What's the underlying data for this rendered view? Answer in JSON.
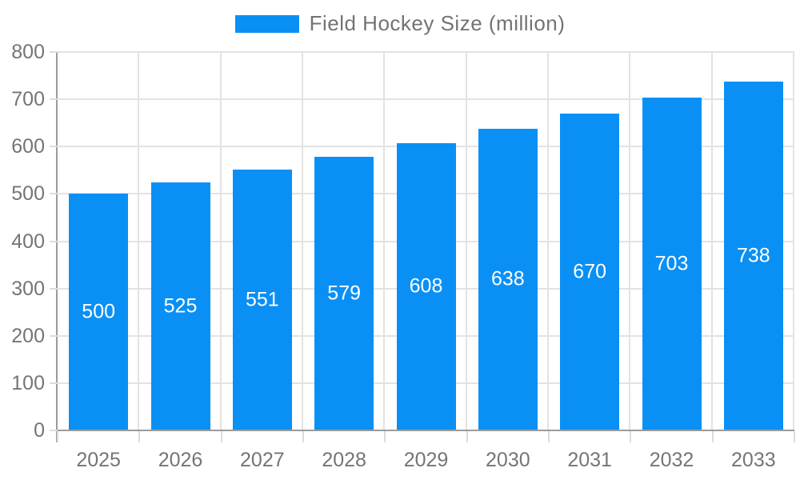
{
  "chart_data": {
    "type": "bar",
    "title": "Field Hockey Size (million)",
    "legend_label": "Field Hockey Size (million)",
    "legend_position": "top",
    "categories": [
      "2025",
      "2026",
      "2027",
      "2028",
      "2029",
      "2030",
      "2031",
      "2032",
      "2033"
    ],
    "values": [
      500,
      525,
      551,
      579,
      608,
      638,
      670,
      703,
      738
    ],
    "series": [
      {
        "name": "Field Hockey Size (million)",
        "values": [
          500,
          525,
          551,
          579,
          608,
          638,
          670,
          703,
          738
        ]
      }
    ],
    "xlabel": "",
    "ylabel": "",
    "ylim": [
      0,
      800
    ],
    "y_ticks": [
      0,
      100,
      200,
      300,
      400,
      500,
      600,
      700,
      800
    ],
    "grid": true,
    "colors": {
      "bar": "#0a90f5",
      "bar_value_label": "#ffffff",
      "axis_line": "#9b9b9b",
      "gridline": "#e3e3e3",
      "tick_text": "#757575",
      "legend_text": "#737373",
      "background": "#ffffff"
    }
  }
}
